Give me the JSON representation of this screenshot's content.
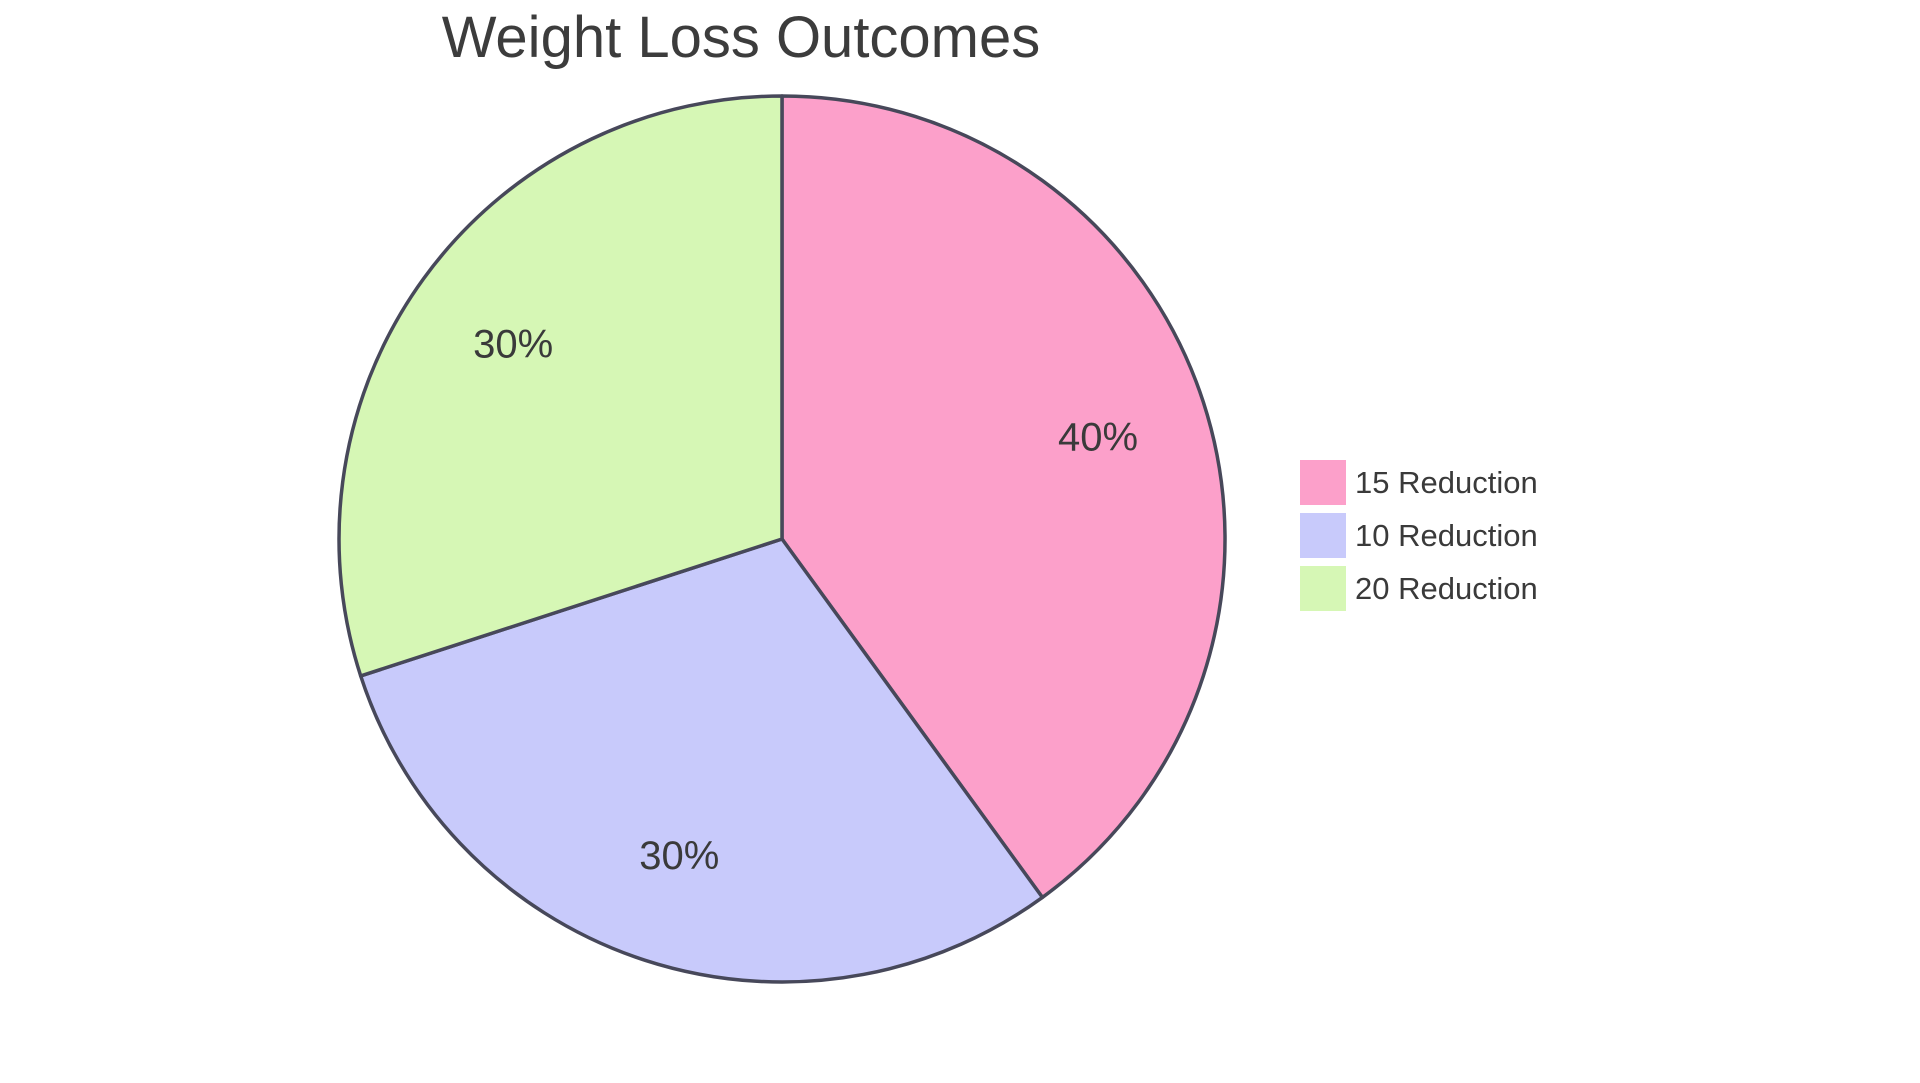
{
  "chart_data": {
    "type": "pie",
    "title": "Weight Loss Outcomes",
    "series": [
      {
        "label": "15 Reduction",
        "value": 40,
        "percent_text": "40%",
        "color": "#FCA0CA"
      },
      {
        "label": "10 Reduction",
        "value": 30,
        "percent_text": "30%",
        "color": "#C8CAFB"
      },
      {
        "label": "20 Reduction",
        "value": 30,
        "percent_text": "30%",
        "color": "#D6F7B5"
      }
    ],
    "start_angle": "12 o'clock",
    "direction": "clockwise",
    "stroke_color": "#47485A",
    "label_color": "#3A3A3A",
    "title_color": "#3C3C3C",
    "label_distance": 0.75,
    "legend_position": "right",
    "background": "#FFFFFF"
  }
}
